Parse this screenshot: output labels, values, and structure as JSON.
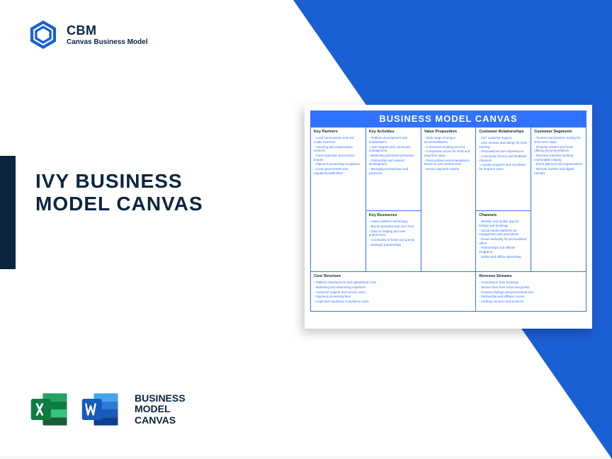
{
  "logo": {
    "acronym": "CBM",
    "full": "Canvas Business Model",
    "color": "#1a5fd4"
  },
  "headline": {
    "line1": "IVY BUSINESS",
    "line2": "MODEL CANVAS"
  },
  "apps": {
    "label_line1": "BUSINESS",
    "label_line2": "MODEL",
    "label_line3": "CANVAS",
    "excel_color_dark": "#107c41",
    "excel_color_light": "#21a366",
    "word_color_dark": "#185abd",
    "word_color_light": "#2b7cd3"
  },
  "canvas": {
    "title": "BUSINESS MODEL CANVAS",
    "title_bg": "#2f73ff",
    "border_color": "#2f73ff",
    "text_color": "#2f73ff",
    "header_color": "#0a2540",
    "sections": {
      "key_partners": {
        "label": "Key Partners",
        "items": [
          "Local homeowners and real estate investors",
          "Cleaning and maintenance services",
          "Travel agencies and tourism boards",
          "Payment processing companies",
          "Local governments and regulatory authorities"
        ]
      },
      "key_activities": {
        "label": "Key Activities",
        "items": [
          "Platform development and maintenance",
          "User support and community management",
          "Marketing and brand promotion",
          "Partnership and network development",
          "Managing transactions and payments"
        ]
      },
      "value_proposition": {
        "label": "Value Proposition",
        "items": [
          "Wide range of unique accommodations",
          "Convenient booking process",
          "Competitive prices for short and long-term stays",
          "Personalized recommendations based on user preferences",
          "Secure payment system"
        ]
      },
      "customer_relationships": {
        "label": "Customer Relationships",
        "items": [
          "24/7 customer support",
          "User reviews and ratings for trust-building",
          "Personalized user experiences",
          "Community forums and feedback channels",
          "Loyalty programs and incentives for frequent users"
        ]
      },
      "customer_segments": {
        "label": "Customer Segments",
        "items": [
          "Tourists and travelers looking for short-term stays",
          "Property owners and hosts offering accommodations",
          "Business travelers seeking comfortable lodging",
          "Event planners and organizations",
          "Remote workers and digital nomads"
        ]
      },
      "key_resources": {
        "label": "Key Resources",
        "items": [
          "Online platform technology",
          "Brand reputation and user trust",
          "Data on lodging and user preferences",
          "Community of hosts and guests",
          "Strategic partnerships"
        ]
      },
      "channels": {
        "label": "Channels",
        "items": [
          "Website and mobile app for listings and bookings",
          "Social media platforms for engagement and promotions",
          "Email marketing for personalized offers",
          "Partnerships and affiliate programs",
          "Online and offline advertising"
        ]
      },
      "cost_structure": {
        "label": "Cost Structure",
        "items": [
          "Platform development and operational costs",
          "Marketing and advertising expenses",
          "Customer support and service costs",
          "Payment processing fees",
          "Legal and regulatory compliance costs"
        ]
      },
      "revenue_streams": {
        "label": "Revenue Streams",
        "items": [
          "Commission from bookings",
          "Service fees from hosts and guests",
          "Featured listings and promotional fees",
          "Partnership and affiliate income",
          "Ancillary services and products"
        ]
      }
    }
  },
  "colors": {
    "triangle": "#1a5fd4",
    "sidebar": "#0a2540",
    "headline": "#0a2540"
  }
}
